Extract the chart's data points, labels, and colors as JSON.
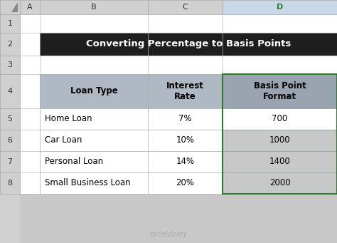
{
  "title": "Converting Percentage to Basis Points",
  "title_bg": "#1e1e1e",
  "title_color": "#ffffff",
  "headers": [
    "Loan Type",
    "Interest\nRate",
    "Basis Point\nFormat"
  ],
  "rows": [
    [
      "Home Loan",
      "7%",
      "700"
    ],
    [
      "Car Loan",
      "10%",
      "1000"
    ],
    [
      "Personal Loan",
      "14%",
      "1400"
    ],
    [
      "Small Business Loan",
      "20%",
      "2000"
    ]
  ],
  "header_bg": "#b0b8c4",
  "header_col3_bg": "#9aa4b0",
  "row_bg_white": "#ffffff",
  "col3_row_bg_white": "#ffffff",
  "col3_row_bg_gray": "#c8c8c8",
  "col3_border_color": "#2d7d2d",
  "row_header_bg": "#d0d0d0",
  "col_header_bg": "#d0d0d0",
  "col_header_D_bg": "#c8d8e8",
  "col_header_D_color": "#2d7d2d",
  "fig_bg": "#c8c8c8",
  "grid_color": "#b8b8b8",
  "watermark_text": "exceldemy",
  "corner_triangle_color": "#888888",
  "note_row5_col3_bg": "#ffffff"
}
